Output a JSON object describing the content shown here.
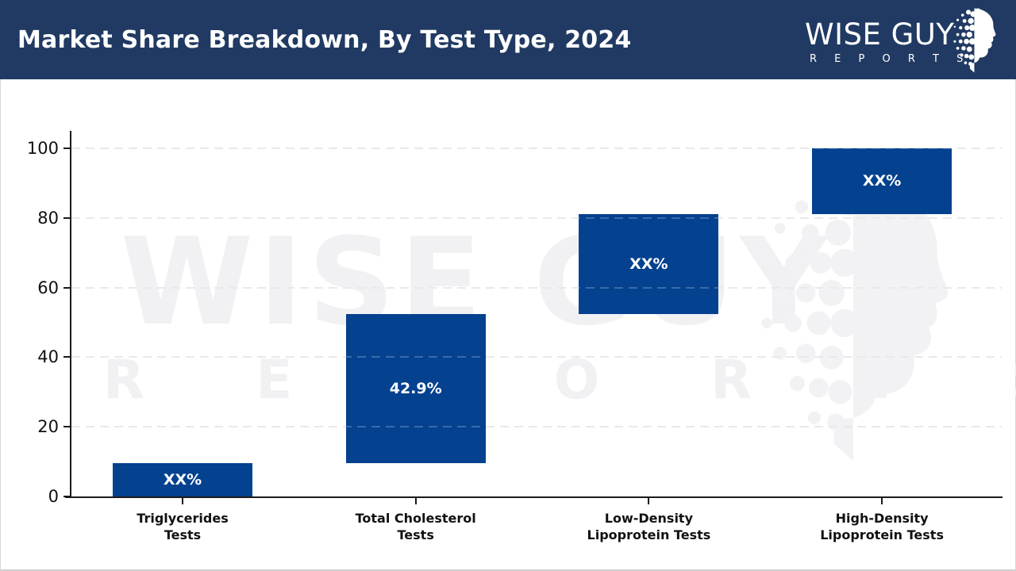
{
  "header": {
    "title": "Market Share Breakdown, By Test Type, 2024",
    "bg_color": "#213a63",
    "logo": {
      "line1": "WISE GUY",
      "line2": "R E P O R T S"
    }
  },
  "watermark": {
    "line1": "WISE GUY",
    "line2": "R E P O R T S"
  },
  "chart_data": {
    "type": "bar",
    "subtype": "waterfall",
    "title": "Market Share Breakdown, By Test Type, 2024",
    "xlabel": "",
    "ylabel": "",
    "ylim": [
      0,
      105
    ],
    "yticks": [
      0,
      20,
      40,
      60,
      80,
      100
    ],
    "grid": "dashed horizontal",
    "bar_color": "#04418f",
    "label_color": "#ffffff",
    "categories": [
      [
        "Triglycerides",
        "Tests"
      ],
      [
        "Total Cholesterol",
        "Tests"
      ],
      [
        "Low-Density",
        "Lipoprotein Tests"
      ],
      [
        "High-Density",
        "Lipoprotein Tests"
      ]
    ],
    "bars": [
      {
        "name": "Triglycerides Tests",
        "label": "XX%",
        "start": 0,
        "end": 9.5,
        "value": 9.5
      },
      {
        "name": "Total Cholesterol Tests",
        "label": "42.9%",
        "start": 9.5,
        "end": 52.4,
        "value": 42.9
      },
      {
        "name": "Low-Density Lipoprotein Tests",
        "label": "XX%",
        "start": 52.4,
        "end": 81.2,
        "value": 28.8
      },
      {
        "name": "High-Density Lipoprotein Tests",
        "label": "XX%",
        "start": 81.2,
        "end": 100,
        "value": 18.8
      }
    ]
  }
}
